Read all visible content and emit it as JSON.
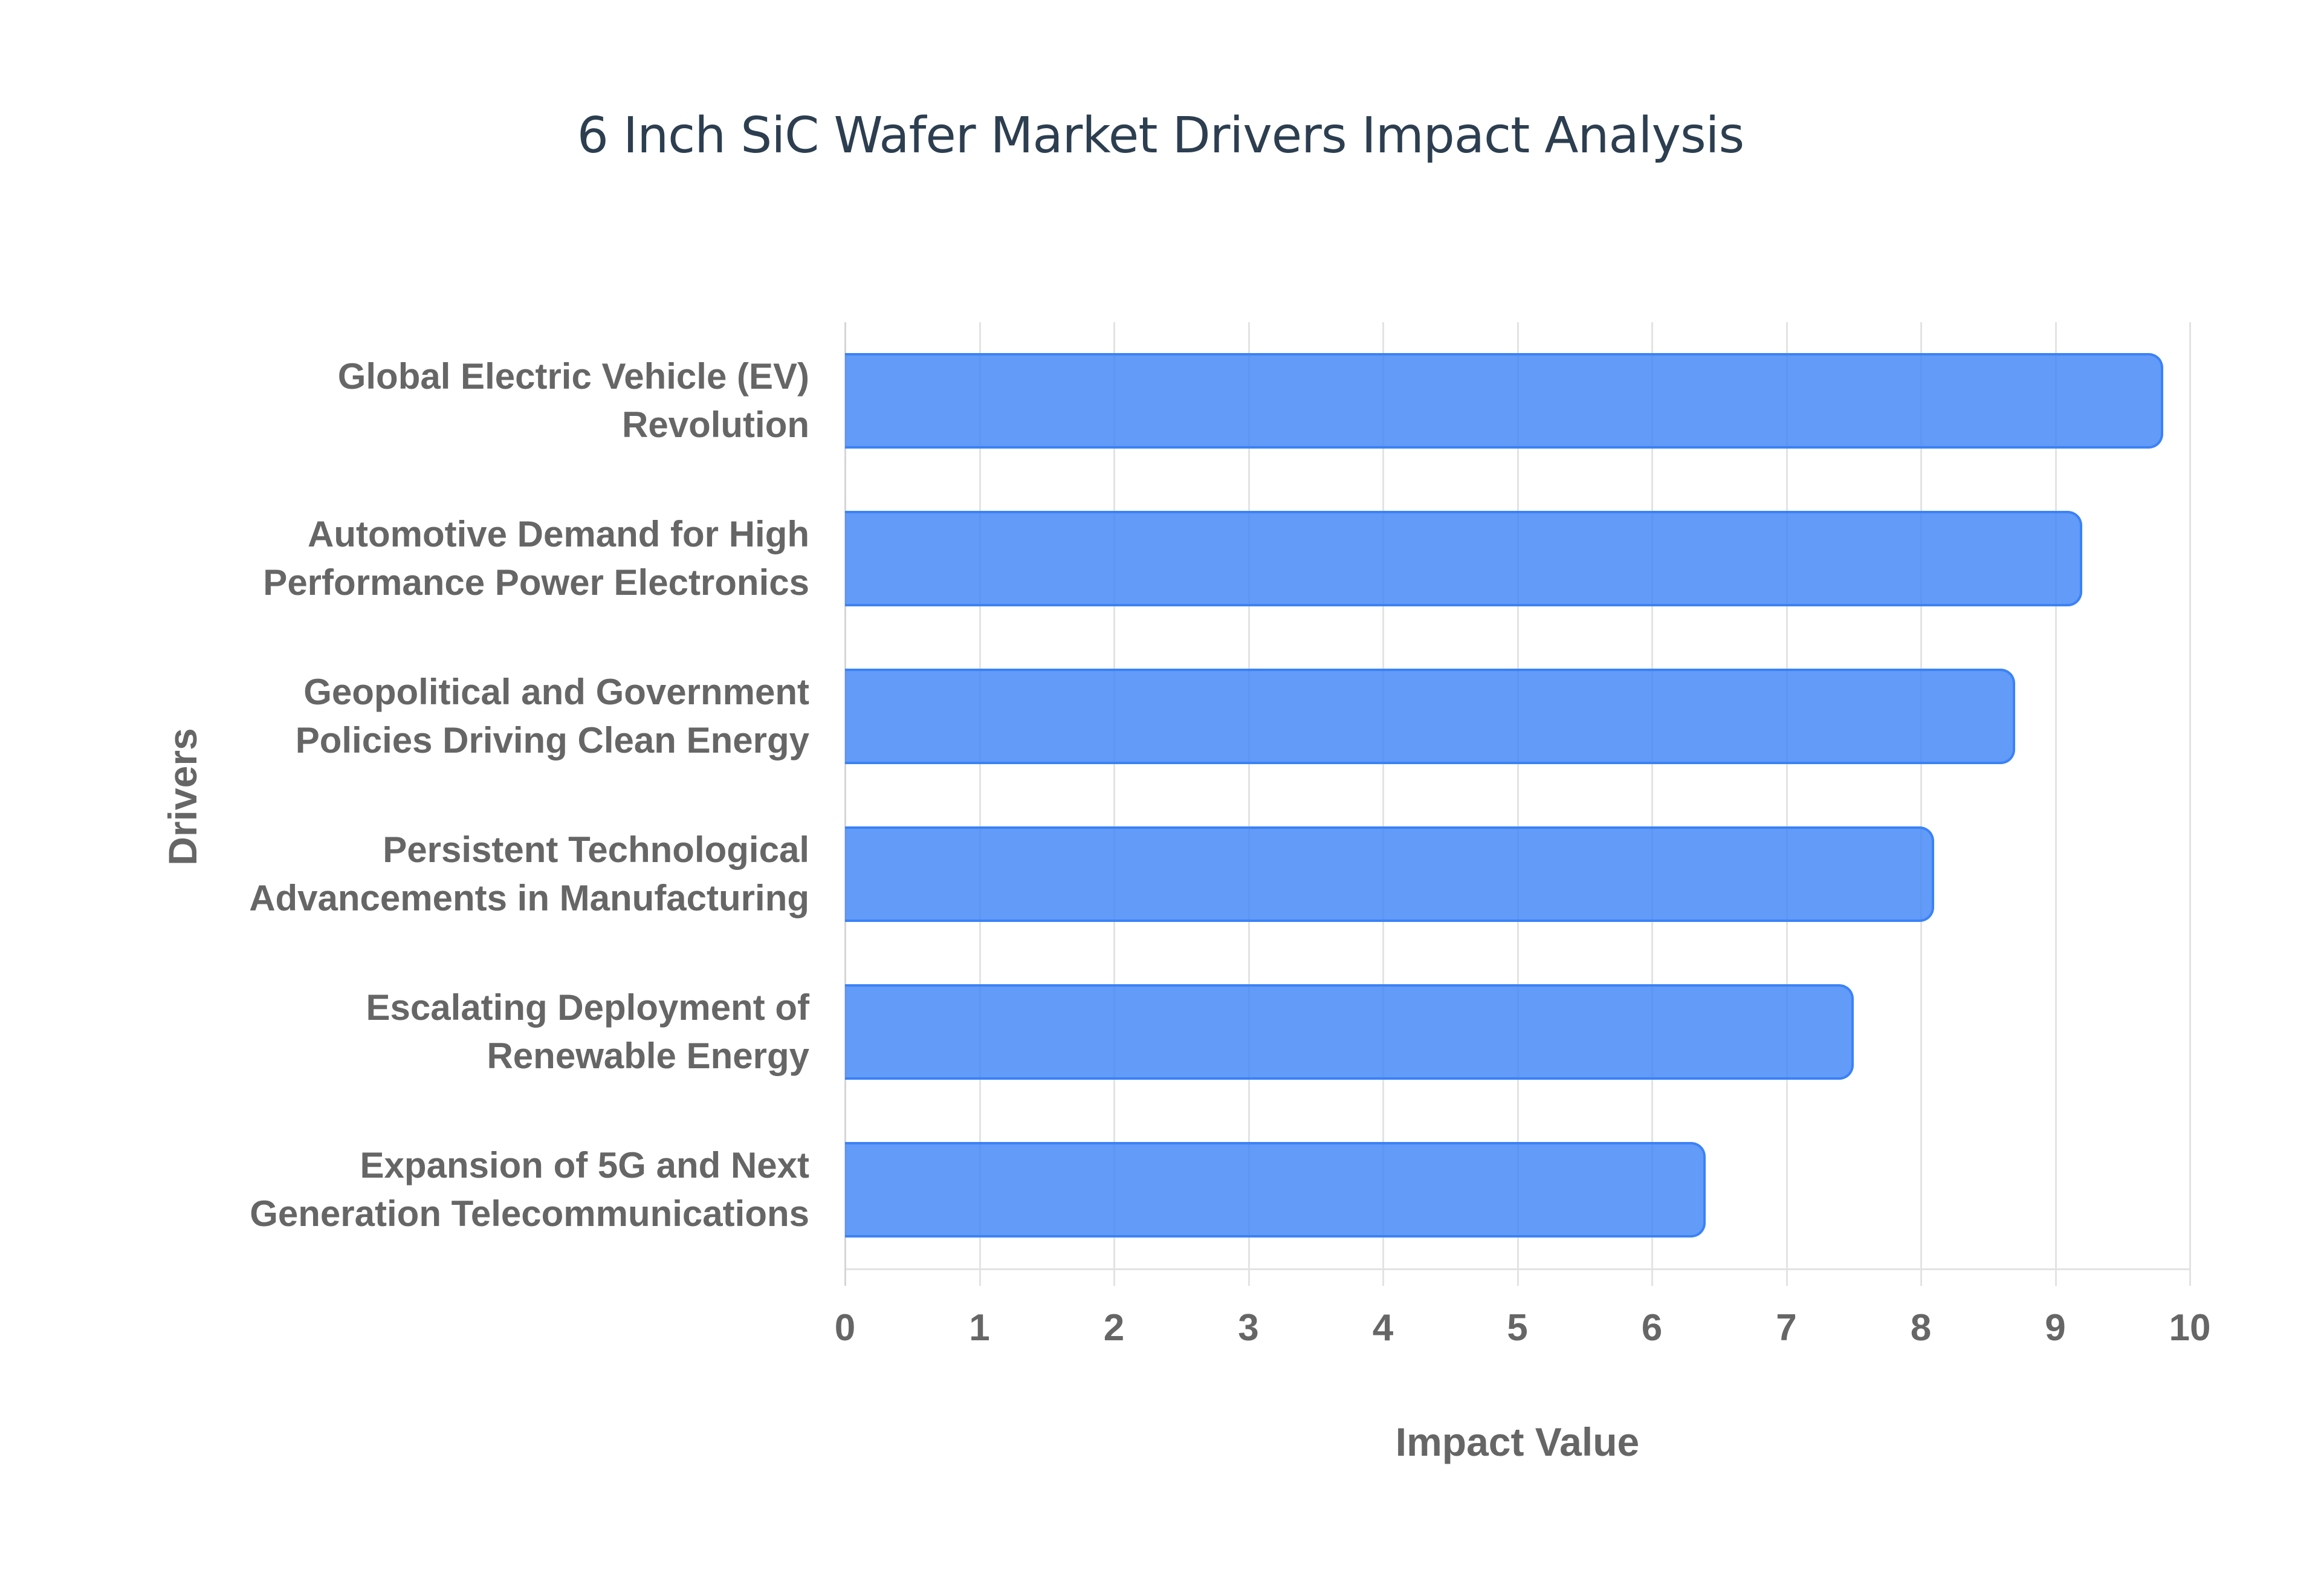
{
  "chart": {
    "title": "6 Inch SiC Wafer Market Drivers Impact Analysis",
    "xlabel": "Impact Value",
    "ylabel": "Drivers",
    "ticks": [
      "0",
      "1",
      "2",
      "3",
      "4",
      "5",
      "6",
      "7",
      "8",
      "9",
      "10"
    ],
    "categories": [
      {
        "line1": "Global Electric Vehicle (EV)",
        "line2": "Revolution"
      },
      {
        "line1": "Automotive Demand for High",
        "line2": "Performance Power Electronics"
      },
      {
        "line1": "Geopolitical and Government",
        "line2": "Policies Driving Clean Energy"
      },
      {
        "line1": "Persistent Technological",
        "line2": "Advancements in Manufacturing"
      },
      {
        "line1": "Escalating Deployment of",
        "line2": "Renewable Energy"
      },
      {
        "line1": "Expansion of 5G and Next",
        "line2": "Generation Telecommunications"
      }
    ],
    "colors": {
      "bar_fill": "#6199f4",
      "bar_border": "#3b82f6",
      "title": "#2c3e50",
      "axis_text": "#666666"
    }
  },
  "chart_data": {
    "type": "bar",
    "orientation": "horizontal",
    "title": "6 Inch SiC Wafer Market Drivers Impact Analysis",
    "xlabel": "Impact Value",
    "ylabel": "Drivers",
    "categories": [
      "Global Electric Vehicle (EV) Revolution",
      "Automotive Demand for High Performance Power Electronics",
      "Geopolitical and Government Policies Driving Clean Energy",
      "Persistent Technological Advancements in Manufacturing",
      "Escalating Deployment of Renewable Energy",
      "Expansion of 5G and Next Generation Telecommunications"
    ],
    "values": [
      9.8,
      9.2,
      8.7,
      8.1,
      7.5,
      6.4
    ],
    "xlim": [
      0,
      10
    ],
    "xticks": [
      0,
      1,
      2,
      3,
      4,
      5,
      6,
      7,
      8,
      9,
      10
    ],
    "grid": true,
    "legend": null
  }
}
